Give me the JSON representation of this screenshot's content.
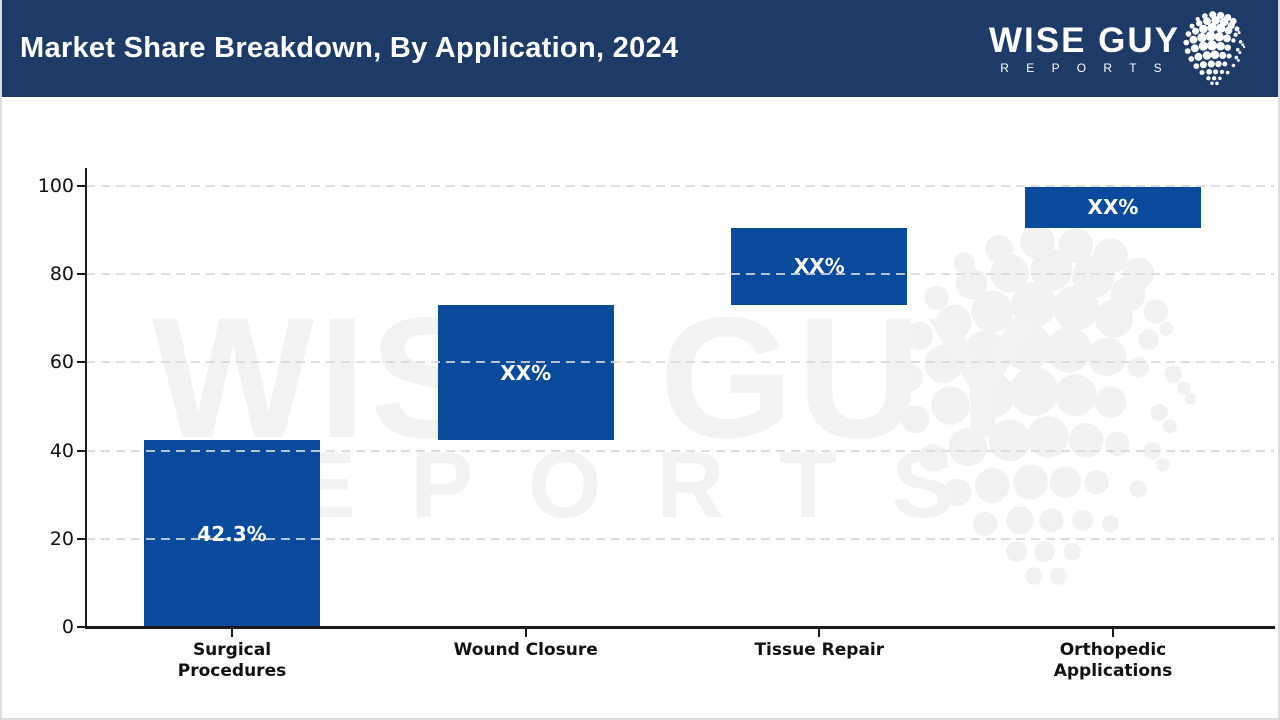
{
  "header": {
    "title": "Market Share Breakdown, By Application, 2024",
    "logo": {
      "line1": "WISE GUY",
      "line2": "R E P O R T S",
      "icon": "dotted-head-profile"
    }
  },
  "watermark": {
    "line1": "WISE GUY",
    "line2": "REPORTS",
    "icon": "dotted-head-profile"
  },
  "colors": {
    "header_bg": "#1e3a66",
    "bar_fill": "#0a4a9c",
    "grid_line": "#d8d8d8",
    "axis_line": "#1a1a1a",
    "bar_label": "#ffffff",
    "watermark": "#f2f2f2"
  },
  "chart_data": {
    "type": "bar",
    "subtype": "waterfall",
    "title": "Market Share Breakdown, By Application, 2024",
    "unit": "%",
    "categories": [
      "Surgical Procedures",
      "Wound Closure",
      "Tissue Repair",
      "Orthopedic Applications"
    ],
    "category_lines": [
      [
        "Surgical",
        "Procedures"
      ],
      [
        "Wound Closure"
      ],
      [
        "Tissue Repair"
      ],
      [
        "Orthopedic",
        "Applications"
      ]
    ],
    "segments": [
      {
        "category": "Surgical Procedures",
        "start": 0,
        "end": 42.3,
        "label": "42.3%"
      },
      {
        "category": "Wound Closure",
        "start": 42.3,
        "end": 73.0,
        "label": "XX%"
      },
      {
        "category": "Tissue Repair",
        "start": 73.0,
        "end": 90.5,
        "label": "XX%"
      },
      {
        "category": "Orthopedic Applications",
        "start": 90.5,
        "end": 99.8,
        "label": "XX%"
      }
    ],
    "yticks": [
      0,
      20,
      40,
      60,
      80,
      100
    ],
    "ylim": [
      0,
      105
    ],
    "grid": "dashed-horizontal-over-bars",
    "legend": "none",
    "xlabel": "",
    "ylabel": ""
  }
}
